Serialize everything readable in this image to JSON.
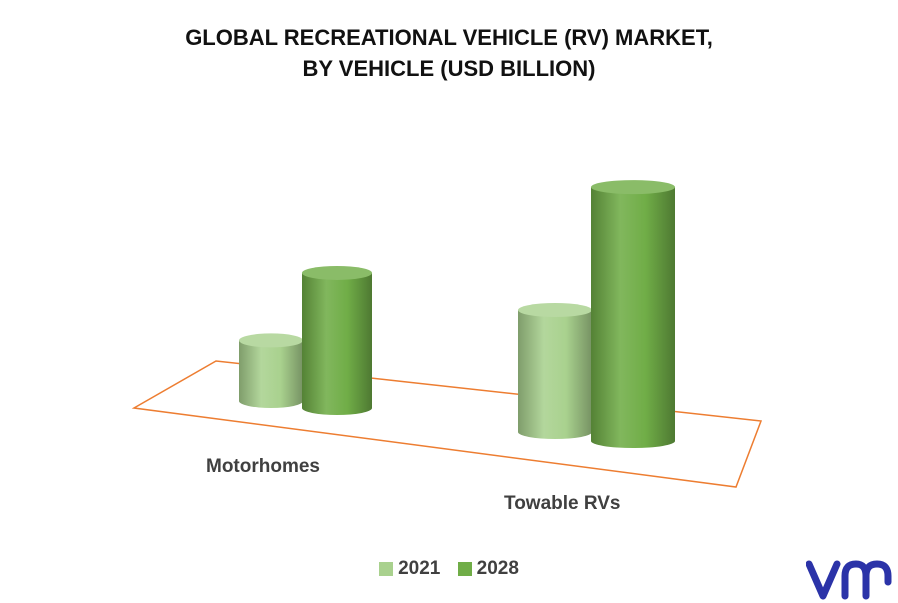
{
  "chart_data": {
    "type": "bar",
    "title_lines": [
      "GLOBAL RECREATIONAL VEHICLE (RV) MARKET,",
      "BY VEHICLE (USD BILLION)"
    ],
    "categories": [
      "Motorhomes",
      "Towable RVs"
    ],
    "series": [
      {
        "name": "2021",
        "values": [
          12,
          19
        ],
        "color": "#a9d18e"
      },
      {
        "name": "2028",
        "values": [
          21,
          39
        ],
        "color": "#70ad47"
      }
    ],
    "ylim": [
      0,
      40
    ],
    "grid": false,
    "legend_position": "bottom",
    "floor_color": "#ed7d31"
  },
  "brand": {
    "logo_icon": "vmr-logo",
    "logo_color": "#2b33a8"
  }
}
